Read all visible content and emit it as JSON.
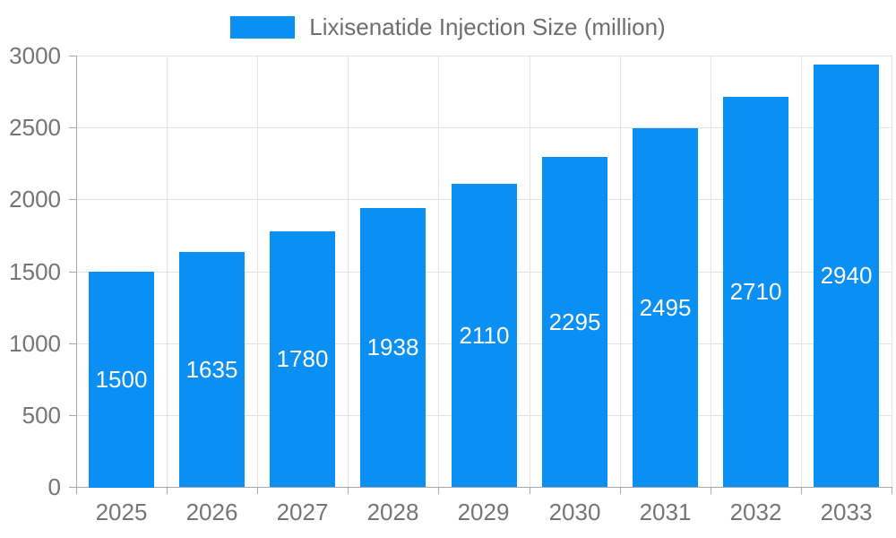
{
  "legend": {
    "label": "Lixisenatide Injection Size (million)"
  },
  "colors": {
    "bar": "#0a90f4",
    "grid": "#e4e4e4",
    "axis": "#a8a8a8",
    "tick_label": "#757575",
    "legend_label": "#6e6e6e",
    "bar_label": "#ffffff",
    "background": "#ffffff"
  },
  "chart_data": {
    "type": "bar",
    "title": "",
    "xlabel": "",
    "ylabel": "",
    "categories": [
      "2025",
      "2026",
      "2027",
      "2028",
      "2029",
      "2030",
      "2031",
      "2032",
      "2033"
    ],
    "series": [
      {
        "name": "Lixisenatide Injection Size (million)",
        "values": [
          1500,
          1635,
          1780,
          1938,
          2110,
          2295,
          2495,
          2710,
          2940
        ]
      }
    ],
    "value_labels": [
      1500,
      1635,
      1780,
      1938,
      2110,
      2295,
      2495,
      2710,
      2940
    ],
    "value_label_position": "inside-center",
    "ylim": [
      0,
      3000
    ],
    "ytick_step": 500,
    "yticks": [
      "0",
      "500",
      "1000",
      "1500",
      "2000",
      "2500",
      "3000"
    ],
    "grid": true,
    "legend_position": "top-center"
  }
}
